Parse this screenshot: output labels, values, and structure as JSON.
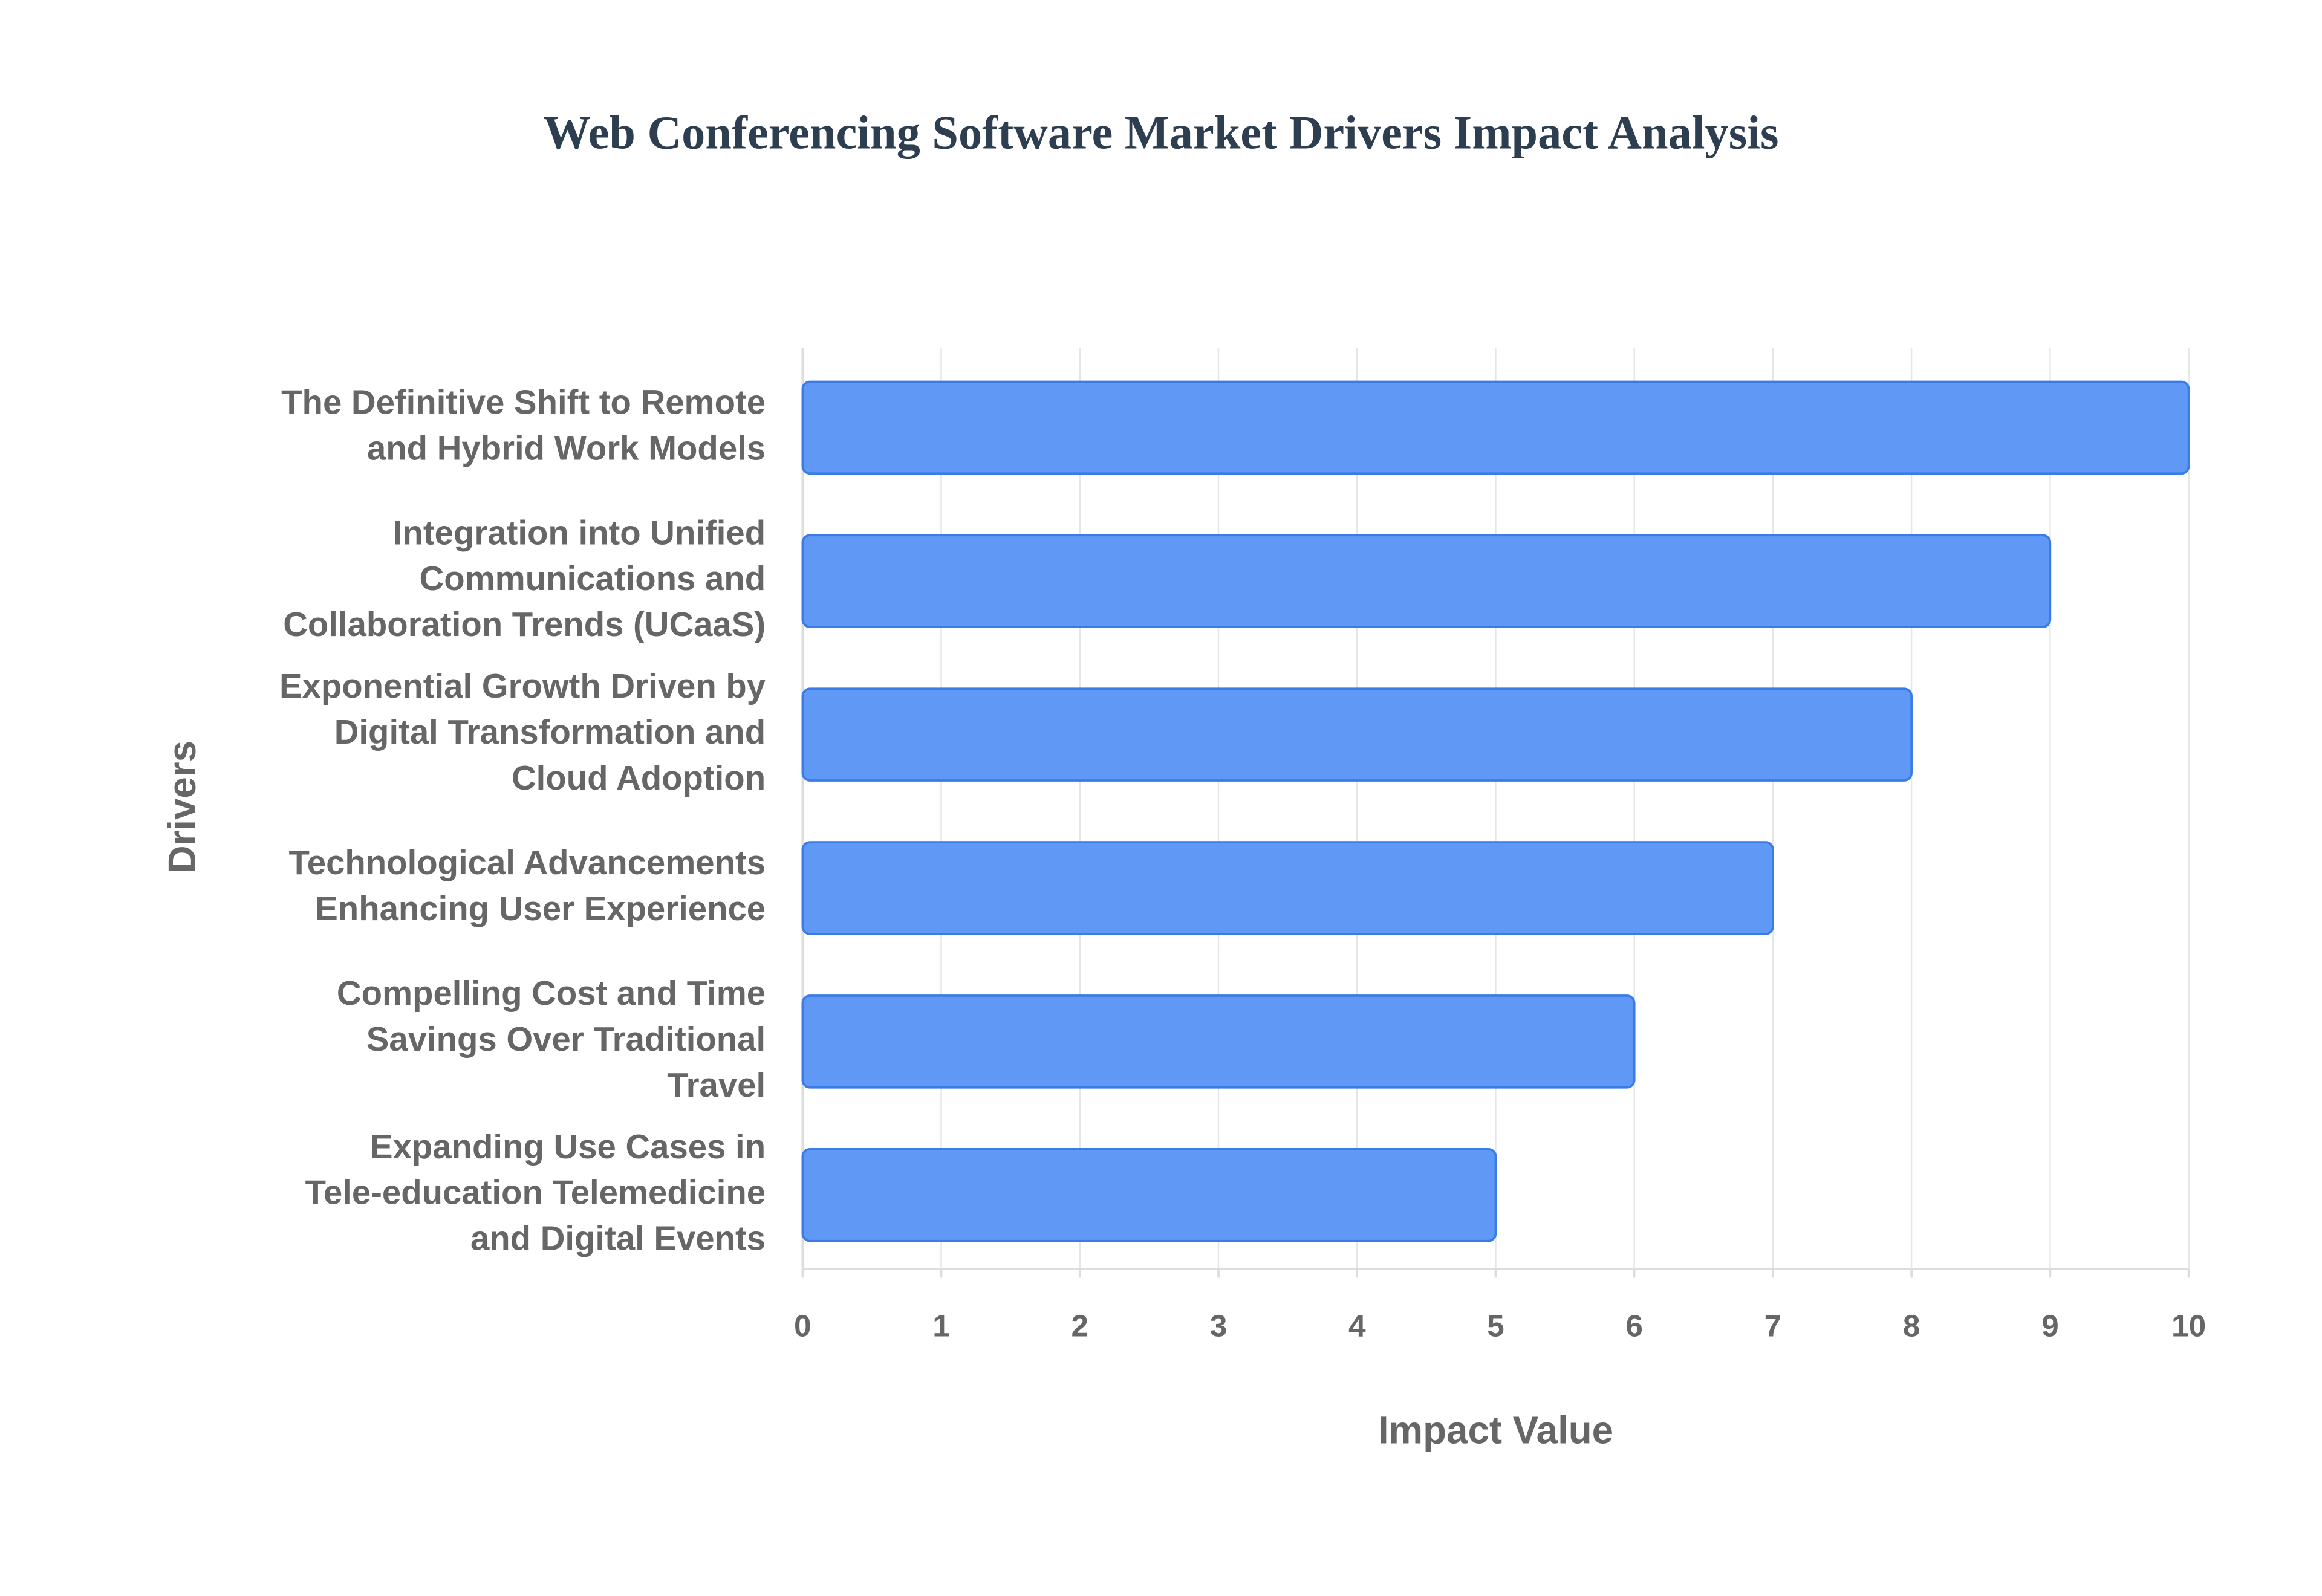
{
  "chart_data": {
    "type": "bar",
    "orientation": "horizontal",
    "title": "Web Conferencing Software Market Drivers Impact Analysis",
    "x_label": "Impact Value",
    "y_label": "Drivers",
    "categories": [
      "The Definitive Shift to Remote and Hybrid Work Models",
      "Integration into Unified Communications and Collaboration Trends (UCaaS)",
      "Exponential Growth Driven by Digital Transformation and Cloud Adoption",
      "Technological Advancements Enhancing User Experience",
      "Compelling Cost and Time Savings Over Traditional Travel",
      "Expanding Use Cases in Tele-education Telemedicine and Digital Events"
    ],
    "values": [
      10,
      9,
      8,
      7,
      6,
      5
    ],
    "color": "#6098f5",
    "xlim": [
      0,
      10
    ],
    "xticks": [
      0,
      1,
      2,
      3,
      4,
      5,
      6,
      7,
      8,
      9,
      10
    ],
    "grid": true
  }
}
